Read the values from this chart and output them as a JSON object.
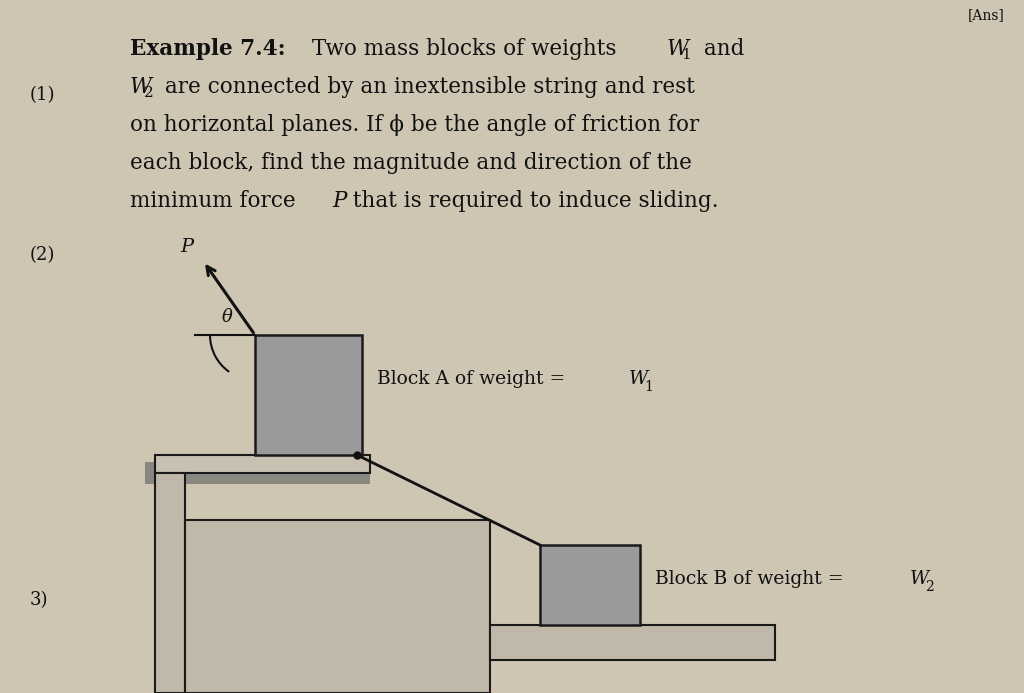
{
  "bg_color": "#cec5b2",
  "block_color": "#9a9a9a",
  "block_edge_color": "#1a1a1a",
  "platform_color": "#b8b0a0",
  "platform_edge_color": "#1a1a1a",
  "shadow_color": "#888880",
  "string_color": "#111111",
  "arrow_color": "#111111",
  "text_color": "#111111",
  "ans_label": "[Ans]",
  "label1": "(1)",
  "label2": "(2)",
  "label3": "3)",
  "P_label": "P",
  "theta_label": "θ"
}
